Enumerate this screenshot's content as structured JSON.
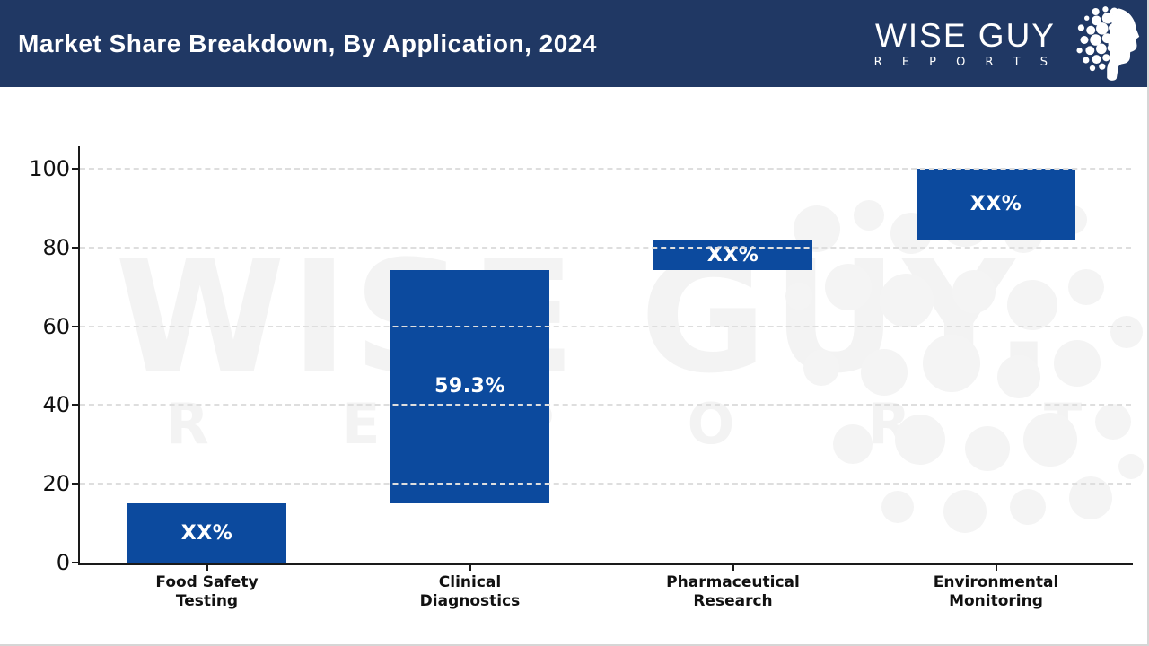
{
  "header": {
    "title": "Market Share Breakdown, By Application, 2024",
    "logo": {
      "line1": "WISE GUY",
      "line2": "R E P O R T S"
    }
  },
  "watermark": {
    "line1": "WISE GUY.",
    "line2": "REPORTS"
  },
  "colors": {
    "header_bg": "#203864",
    "bar": "#0c4a9e",
    "gridline": "#dedede",
    "axis": "#1a1a1a",
    "bar_label_text": "#ffffff",
    "watermark": "#f3f3f3",
    "background": "#ffffff"
  },
  "chart_data": {
    "type": "bar",
    "subtype": "waterfall",
    "title": "Market Share Breakdown, By Application, 2024",
    "categories": [
      "Food Safety\nTesting",
      "Clinical\nDiagnostics",
      "Pharmaceutical\nResearch",
      "Environmental\nMonitoring"
    ],
    "segments": [
      {
        "category": "Food Safety Testing",
        "start": 0,
        "end": 15.0,
        "label": "XX%"
      },
      {
        "category": "Clinical Diagnostics",
        "start": 15.0,
        "end": 74.3,
        "label": "59.3%"
      },
      {
        "category": "Pharmaceutical Research",
        "start": 74.3,
        "end": 81.8,
        "label": "XX%"
      },
      {
        "category": "Environmental Monitoring",
        "start": 81.8,
        "end": 100,
        "label": "XX%"
      }
    ],
    "yticks": [
      0,
      20,
      40,
      60,
      80,
      100
    ],
    "ylim": [
      0,
      105.5
    ],
    "xlabel": "",
    "ylabel": "",
    "grid": "dashed-horizontal",
    "legend": "none"
  }
}
